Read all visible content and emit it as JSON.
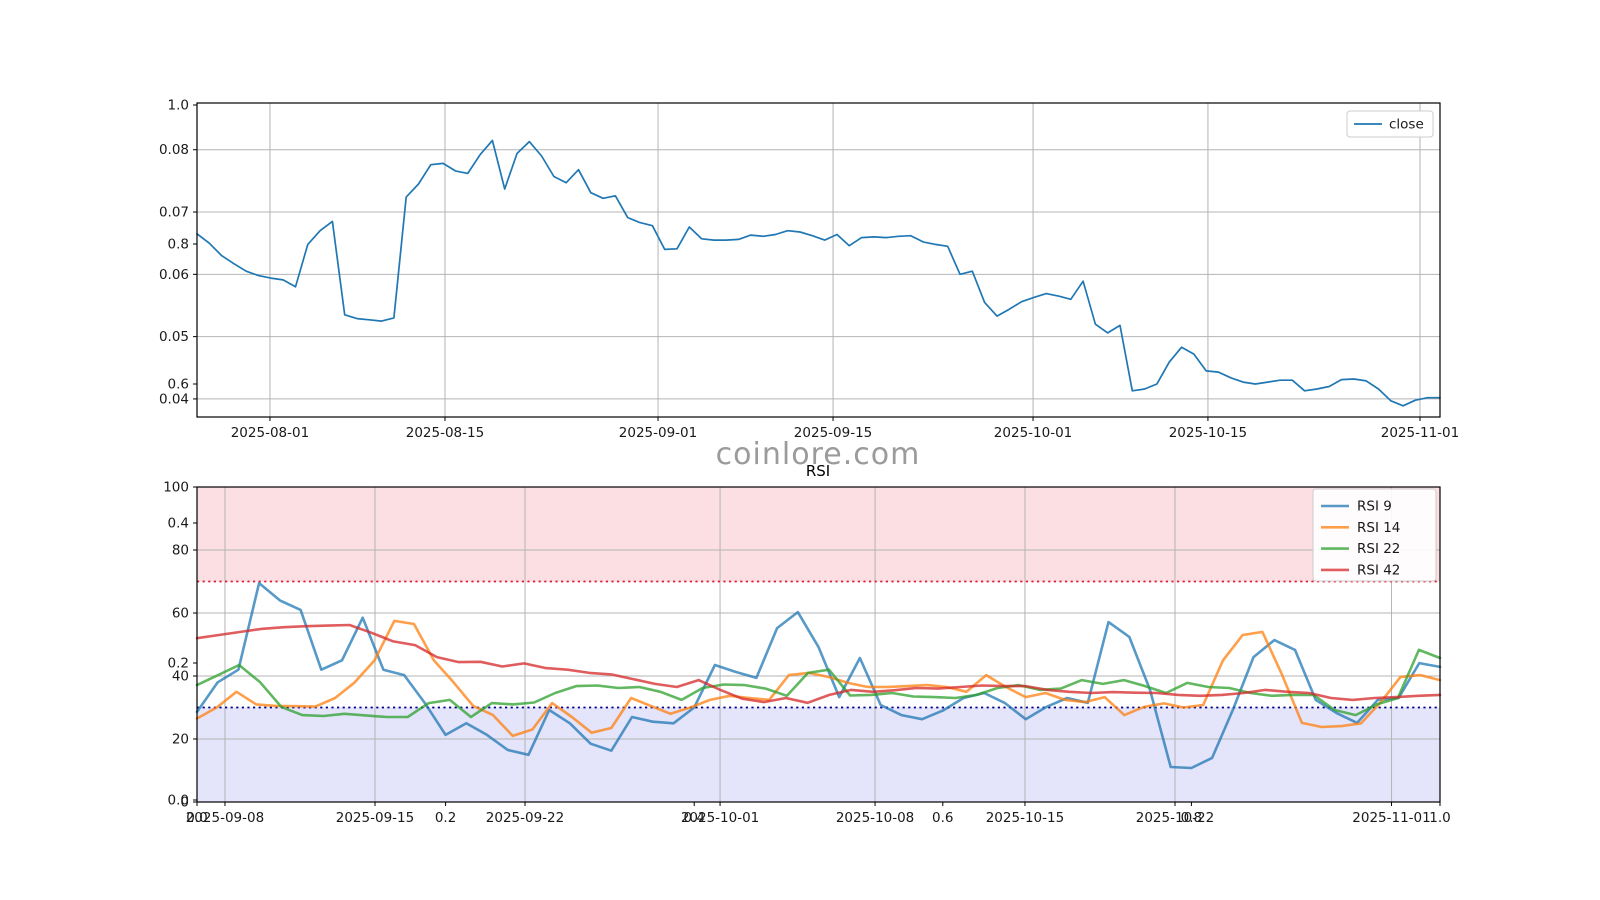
{
  "watermark": "coinlore.com",
  "stray_axis_labels": {
    "y_labels": [
      "1.0",
      "0.8",
      "0.6",
      "0.4",
      "0.2",
      "0.0"
    ],
    "x_labels": [
      "0.0",
      "0.2",
      "0.4",
      "0.6",
      "0.8",
      "1.0"
    ]
  },
  "chart_data": [
    {
      "type": "line",
      "title": "",
      "xlabel": "",
      "ylabel": "",
      "grid": true,
      "legend_position": "upper right",
      "x_range": [
        "2025-07-26",
        "2025-11-04"
      ],
      "x_tick_labels": [
        "2025-08-01",
        "2025-08-15",
        "2025-09-01",
        "2025-09-15",
        "2025-10-01",
        "2025-10-15",
        "2025-11-01"
      ],
      "y_tick_labels": [
        "0.08",
        "0.07",
        "0.06",
        "0.05",
        "0.04"
      ],
      "y_ticks": [
        0.08,
        0.07,
        0.06,
        0.05,
        0.04
      ],
      "ylim": [
        0.0371,
        0.0875
      ],
      "series": [
        {
          "name": "close",
          "color": "#1f77b4",
          "values": [
            0.0665,
            0.065,
            0.063,
            0.0617,
            0.0605,
            0.0598,
            0.0594,
            0.0591,
            0.058,
            0.0648,
            0.067,
            0.0685,
            0.0535,
            0.0529,
            0.0527,
            0.0525,
            0.053,
            0.0724,
            0.0745,
            0.0776,
            0.0778,
            0.0766,
            0.0762,
            0.0792,
            0.0815,
            0.0737,
            0.0794,
            0.0813,
            0.079,
            0.0757,
            0.0747,
            0.0768,
            0.0731,
            0.0722,
            0.0726,
            0.0691,
            0.0683,
            0.0678,
            0.064,
            0.0641,
            0.0676,
            0.0657,
            0.0655,
            0.0655,
            0.0656,
            0.0663,
            0.0661,
            0.0664,
            0.067,
            0.0668,
            0.0662,
            0.0655,
            0.0664,
            0.0646,
            0.0659,
            0.066,
            0.0659,
            0.0661,
            0.0662,
            0.0652,
            0.0648,
            0.0645,
            0.06,
            0.0605,
            0.0555,
            0.0533,
            0.0544,
            0.0556,
            0.0563,
            0.0569,
            0.0565,
            0.056,
            0.0589,
            0.052,
            0.0506,
            0.0518,
            0.0413,
            0.0416,
            0.0424,
            0.0459,
            0.0483,
            0.0472,
            0.0445,
            0.0443,
            0.0434,
            0.0427,
            0.0424,
            0.0427,
            0.043,
            0.043,
            0.0413,
            0.0416,
            0.042,
            0.0431,
            0.0432,
            0.0429,
            0.0416,
            0.0397,
            0.0389,
            0.0398,
            0.0402,
            0.0402
          ]
        }
      ]
    },
    {
      "type": "line",
      "title": "RSI",
      "xlabel": "",
      "ylabel": "",
      "grid": true,
      "legend_position": "upper right",
      "x_range": [
        "2025-09-07",
        "2025-11-04"
      ],
      "x_tick_labels": [
        "2025-09-08",
        "2025-09-15",
        "2025-09-22",
        "2025-10-01",
        "2025-10-08",
        "2025-10-15",
        "2025-10-22",
        "2025-11-01"
      ],
      "y_tick_labels": [
        "100",
        "80",
        "60",
        "40",
        "20",
        "0"
      ],
      "y_ticks": [
        100,
        80,
        60,
        40,
        20,
        0
      ],
      "ylim": [
        0,
        100
      ],
      "overbought_level": 70,
      "oversold_level": 30,
      "bands": [
        {
          "from": 70,
          "to": 100,
          "color": "#fbdfe3"
        },
        {
          "from": 0,
          "to": 30,
          "color": "#e4e4fa"
        }
      ],
      "dotted_lines": [
        {
          "y": 70,
          "color": "#e11931"
        },
        {
          "y": 30,
          "color": "#00008b"
        }
      ],
      "series": [
        {
          "name": "RSI 9",
          "color": "#1f77b4",
          "values": [
            28.6,
            38,
            42,
            69.5,
            64,
            61,
            42,
            45,
            58.5,
            42,
            40.3,
            31.4,
            21.3,
            25,
            21.3,
            16.5,
            15,
            29.2,
            25,
            18.5,
            16.3,
            27,
            25.5,
            25,
            30,
            43.5,
            41.3,
            39.4,
            55.2,
            60.3,
            49.2,
            33.3,
            45.7,
            30.8,
            27.6,
            26.3,
            29,
            33,
            34.6,
            31.4,
            26.3,
            30.2,
            33,
            31.5,
            57.1,
            52.4,
            35.6,
            11.1,
            10.8,
            14,
            29.2,
            46,
            51.4,
            48.3,
            32.4,
            28.3,
            25.1,
            32.4,
            33,
            44.1,
            42.9
          ]
        },
        {
          "name": "RSI 14",
          "color": "#ff7f0e",
          "values": [
            26.5,
            30,
            35,
            31,
            30.5,
            30.4,
            30.3,
            33,
            38,
            45,
            57.5,
            56.5,
            45,
            38,
            30.5,
            27.6,
            21,
            23,
            31.4,
            27,
            22,
            23.5,
            33,
            30.5,
            28,
            30,
            32.4,
            33.7,
            33,
            32.4,
            40.3,
            41,
            39.7,
            37.8,
            36.5,
            36.5,
            36.8,
            37.1,
            36.5,
            35,
            40.3,
            36.5,
            33.3,
            34.6,
            32.4,
            31.7,
            33.3,
            27.6,
            30.2,
            31.3,
            30,
            30.8,
            45,
            53,
            54,
            40.3,
            25.1,
            23.8,
            24.1,
            25,
            31.7,
            39.7,
            40.3,
            38.7
          ]
        },
        {
          "name": "RSI 22",
          "color": "#2ca02c",
          "values": [
            37.1,
            40.3,
            43.5,
            38,
            30.2,
            27.6,
            27.3,
            28,
            27.5,
            27,
            27,
            31.4,
            32.4,
            27,
            31.4,
            31,
            31.6,
            34.6,
            36.8,
            37,
            36.2,
            36.5,
            35,
            32.4,
            36.2,
            37.3,
            37.1,
            36,
            33.7,
            41,
            42,
            33.8,
            34,
            34.6,
            33.5,
            33.3,
            33,
            34,
            36.2,
            37.1,
            35.6,
            36,
            38.7,
            37.5,
            38.7,
            36.8,
            34.6,
            37.8,
            36.5,
            36.2,
            34.6,
            33.7,
            34,
            34,
            29.2,
            27.6,
            31,
            33,
            48.3,
            45.7
          ]
        },
        {
          "name": "RSI 42",
          "color": "#d62728",
          "values": [
            52,
            53,
            54,
            55,
            55.5,
            55.8,
            56,
            56.2,
            53.7,
            51,
            49.8,
            46,
            44.4,
            44.5,
            43,
            44,
            42.5,
            42,
            41,
            40.5,
            39,
            37.5,
            36.5,
            38.7,
            35.6,
            32.8,
            31.7,
            33,
            31.5,
            34,
            35.6,
            35,
            35.5,
            36.2,
            36,
            36.5,
            37,
            36.8,
            36.8,
            35.6,
            35,
            34.6,
            34.9,
            34.7,
            34.6,
            34,
            33.7,
            34,
            34.6,
            35.6,
            35,
            34.6,
            33,
            32.4,
            33,
            33.3,
            33.7,
            34
          ]
        }
      ]
    }
  ]
}
